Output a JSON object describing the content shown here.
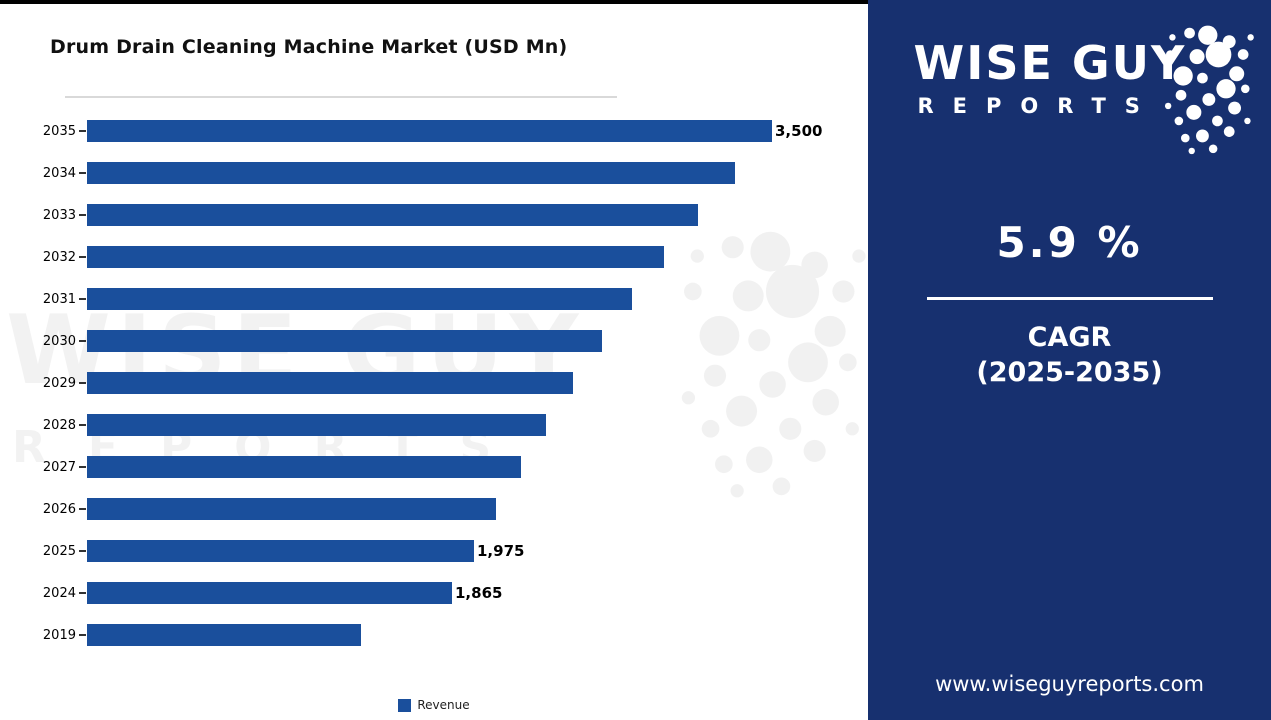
{
  "title": "Drum Drain Cleaning Machine Market (USD Mn)",
  "legend_label": "Revenue",
  "watermark": {
    "line1": "WISE GUY",
    "line2": "REPORTS"
  },
  "panel": {
    "brand_line1": "WISE GUY",
    "brand_line2": "REPORTS",
    "cagr_value": "5.9 %",
    "cagr_label1": "CAGR",
    "cagr_label2": "(2025-2035)",
    "website": "www.wiseguyreports.com",
    "bg_color": "#17306f"
  },
  "chart_data": {
    "type": "bar",
    "orientation": "horizontal",
    "title": "Drum Drain Cleaning Machine Market (USD Mn)",
    "xlabel": "",
    "ylabel": "",
    "xlim": [
      0,
      3500
    ],
    "grid": false,
    "legend": [
      "Revenue"
    ],
    "legend_position": "bottom-center",
    "bar_color": "#1a4f9c",
    "categories": [
      "2035",
      "2034",
      "2033",
      "2032",
      "2031",
      "2030",
      "2029",
      "2028",
      "2027",
      "2026",
      "2025",
      "2024",
      "2019"
    ],
    "values": [
      3500,
      3309,
      3124,
      2950,
      2786,
      2631,
      2484,
      2346,
      2215,
      2092,
      1975,
      1865,
      1400
    ],
    "value_labels": {
      "2035": "3,500",
      "2025": "1,975",
      "2024": "1,865"
    }
  }
}
